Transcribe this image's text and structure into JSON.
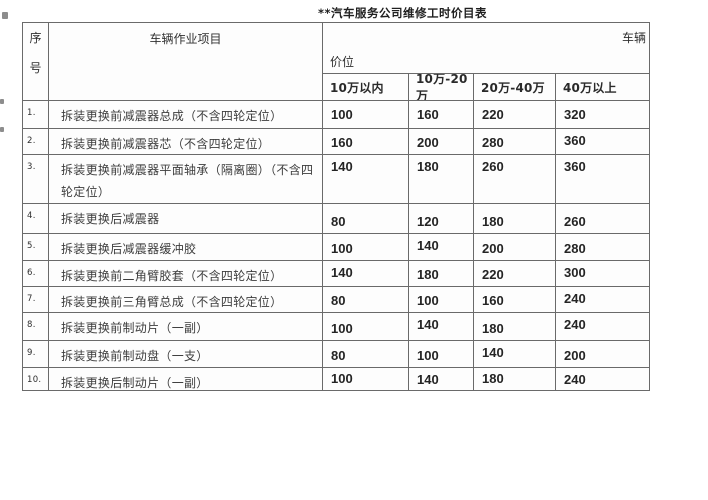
{
  "title": "**汽车服务公司维修工时价目表",
  "colors": {
    "border": "#6a6a6a",
    "text": "#303030",
    "num-text": "#242424",
    "bg": "#ffffff"
  },
  "table": {
    "header": {
      "seq_line1": "序",
      "seq_line2": "号",
      "item_col": "车辆作业项目",
      "vehicle": "车辆",
      "price_level": "价位",
      "price_tiers": [
        "10万以内",
        "10万-20万",
        "20万-40万",
        "40万以上"
      ]
    },
    "rows": [
      {
        "no": "1.",
        "item": "拆装更换前减震器总成（不含四轮定位）",
        "prices": [
          "100",
          "160",
          "220",
          "320"
        ]
      },
      {
        "no": "2.",
        "item": "拆装更换前减震器芯（不含四轮定位）",
        "prices": [
          "160",
          "200",
          "280",
          "360"
        ]
      },
      {
        "no": "3.",
        "item": "拆装更换前减震器平面轴承（隔离圈）（不含四轮定位）",
        "prices": [
          "140",
          "180",
          "260",
          "360"
        ]
      },
      {
        "no": "4.",
        "item": "拆装更换后减震器",
        "prices": [
          "80",
          "120",
          "180",
          "260"
        ]
      },
      {
        "no": "5.",
        "item": "拆装更换后减震器缓冲胶",
        "prices": [
          "100",
          "140",
          "200",
          "280"
        ]
      },
      {
        "no": "6.",
        "item": "拆装更换前二角臂胶套（不含四轮定位）",
        "prices": [
          "140",
          "180",
          "220",
          "300"
        ]
      },
      {
        "no": "7.",
        "item": "拆装更换前三角臂总成（不含四轮定位）",
        "prices": [
          "80",
          "100",
          "160",
          "240"
        ]
      },
      {
        "no": "8.",
        "item": "拆装更换前制动片（一副）",
        "prices": [
          "100",
          "140",
          "180",
          "240"
        ]
      },
      {
        "no": "9.",
        "item": "拆装更换前制动盘（一支）",
        "prices": [
          "80",
          "100",
          "140",
          "200"
        ]
      },
      {
        "no": "10.",
        "item": "拆装更换后制动片（一副）",
        "prices": [
          "100",
          "140",
          "180",
          "240"
        ]
      }
    ]
  }
}
